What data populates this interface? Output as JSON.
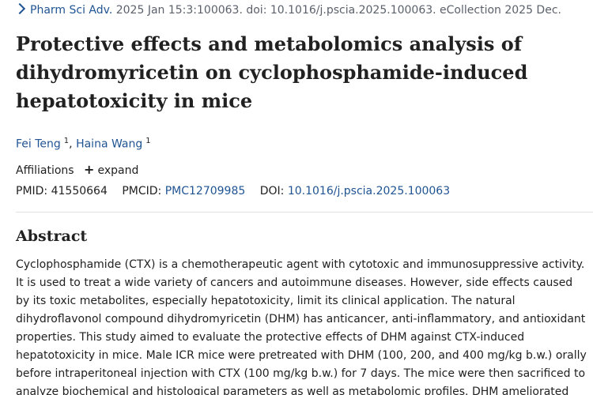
{
  "citation": {
    "journal": "Pharm Sci Adv.",
    "details": " 2025 Jan 15:3:100063. doi: 10.1016/j.pscia.2025.100063. eCollection 2025 Dec."
  },
  "title": "Protective effects and metabolomics analysis of dihydromyricetin on cyclophosphamide-induced hepatotoxicity in mice",
  "authors": [
    {
      "name": "Fei Teng",
      "sup": "1"
    },
    {
      "name": "Haina Wang",
      "sup": "1"
    }
  ],
  "author_separator": ", ",
  "affiliations": {
    "label": "Affiliations",
    "expand_icon": "+",
    "expand_label": "expand"
  },
  "ids": {
    "pmid_label": "PMID:",
    "pmid": "41550664",
    "pmcid_label": "PMCID:",
    "pmcid": "PMC12709985",
    "doi_label": "DOI:",
    "doi": "10.1016/j.pscia.2025.100063"
  },
  "abstract": {
    "heading": "Abstract",
    "text": "Cyclophosphamide (CTX) is a chemotherapeutic agent with cytotoxic and immunosuppressive activity. It is used to treat a wide variety of cancers and autoimmune diseases. However, side effects caused by its toxic metabolites, especially hepatotoxicity, limit its clinical application. The natural dihydroflavonol compound dihydromyricetin (DHM) has anticancer, anti-inflammatory, and antioxidant properties. This study aimed to evaluate the protective effects of DHM against CTX-induced hepatotoxicity in mice. Male ICR mice were pretreated with DHM (100, 200, and 400 mg/kg b.w.) orally before intraperitoneal injection with CTX (100 mg/kg b.w.) for 7 days. The mice were then sacrificed to analyze biochemical and histological parameters as well as metabolomic profiles. DHM ameliorated"
  }
}
